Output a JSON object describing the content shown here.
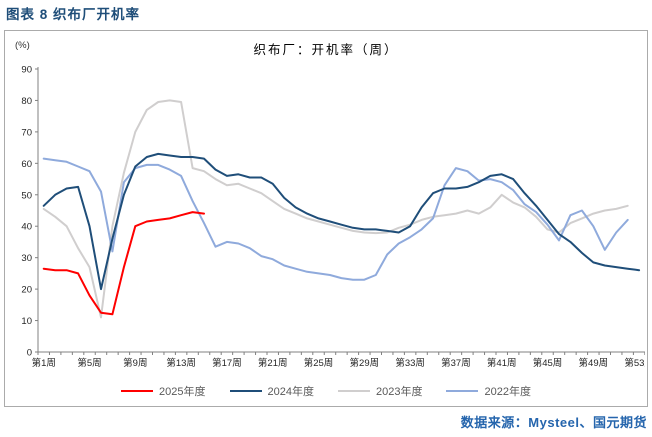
{
  "page": {
    "title": "图表 8 织布厂开机率",
    "title_color": "#1f4e79",
    "source": "数据来源：Mysteel、国元期货",
    "source_color": "#2565ad"
  },
  "chart_data": {
    "type": "line",
    "title": "织布厂：开机率（周）",
    "y_unit_label": "(%)",
    "ylim": [
      0,
      90
    ],
    "ytick_step": 10,
    "yticks": [
      0,
      10,
      20,
      30,
      40,
      50,
      60,
      70,
      80,
      90
    ],
    "weeks_total": 53,
    "grid": false,
    "legend_position": "bottom",
    "axis_color": "#808080",
    "axis_text_color": "#262626",
    "legend_text_color": "#595959",
    "x_tick_weeks": [
      1,
      5,
      9,
      13,
      17,
      21,
      25,
      29,
      33,
      37,
      41,
      45,
      49,
      53
    ],
    "x_tick_labels": [
      "第1周",
      "第5周",
      "第9周",
      "第13周",
      "第17周",
      "第21周",
      "第25周",
      "第29周",
      "第33周",
      "第37周",
      "第41周",
      "第45周",
      "第49周",
      "第53周"
    ],
    "series": [
      {
        "name": "2025年度",
        "color": "#ff0000",
        "start_week": 1,
        "values": [
          26.5,
          26,
          26,
          25,
          18,
          12.5,
          12,
          27,
          40,
          41.5,
          42,
          42.5,
          43.5,
          44.5,
          44
        ]
      },
      {
        "name": "2024年度",
        "color": "#1f4e79",
        "start_week": 1,
        "values": [
          46.5,
          50,
          52,
          52.5,
          40,
          20,
          36,
          50,
          59,
          62,
          63,
          62.5,
          62,
          62,
          61.5,
          58,
          56,
          56.5,
          55.5,
          55.5,
          53.5,
          49,
          46,
          44,
          42.5,
          41.5,
          40.5,
          39.5,
          39,
          39,
          38.5,
          38,
          40,
          46,
          50.5,
          52,
          52,
          52.5,
          54,
          56,
          56.5,
          55,
          50.5,
          46.5,
          42,
          37.5,
          35,
          31.5,
          28.5,
          27.5,
          27,
          26.5,
          26
        ]
      },
      {
        "name": "2023年度",
        "color": "#d0cece",
        "start_week": 1,
        "values": [
          45.5,
          43,
          40,
          33,
          27,
          11,
          40,
          57,
          70,
          77,
          79.5,
          80,
          79.5,
          58.5,
          57.5,
          55,
          53,
          53.5,
          52,
          50.5,
          48,
          45.5,
          44,
          42.5,
          41.5,
          40.5,
          39.5,
          38.5,
          38,
          37.8,
          38,
          39.5,
          40.5,
          42,
          43,
          43.5,
          44,
          45,
          44,
          46,
          50,
          47.5,
          46,
          43,
          39,
          38,
          41,
          42.5,
          44,
          45,
          45.5,
          46.5
        ]
      },
      {
        "name": "2022年度",
        "color": "#8faadc",
        "start_week": 1,
        "values": [
          61.5,
          61,
          60.5,
          59,
          57.5,
          51,
          32,
          54,
          58.5,
          59.5,
          59.5,
          58,
          56,
          48,
          41,
          33.5,
          35,
          34.5,
          33,
          30.5,
          29.5,
          27.5,
          26.5,
          25.5,
          25,
          24.5,
          23.5,
          23,
          23,
          24.5,
          31,
          34.5,
          36.5,
          39,
          42.5,
          53,
          58.5,
          57.5,
          54.5,
          55,
          54,
          51.5,
          47,
          44.5,
          40.5,
          35.5,
          43.5,
          45,
          40,
          32.5,
          38,
          42
        ]
      }
    ]
  }
}
